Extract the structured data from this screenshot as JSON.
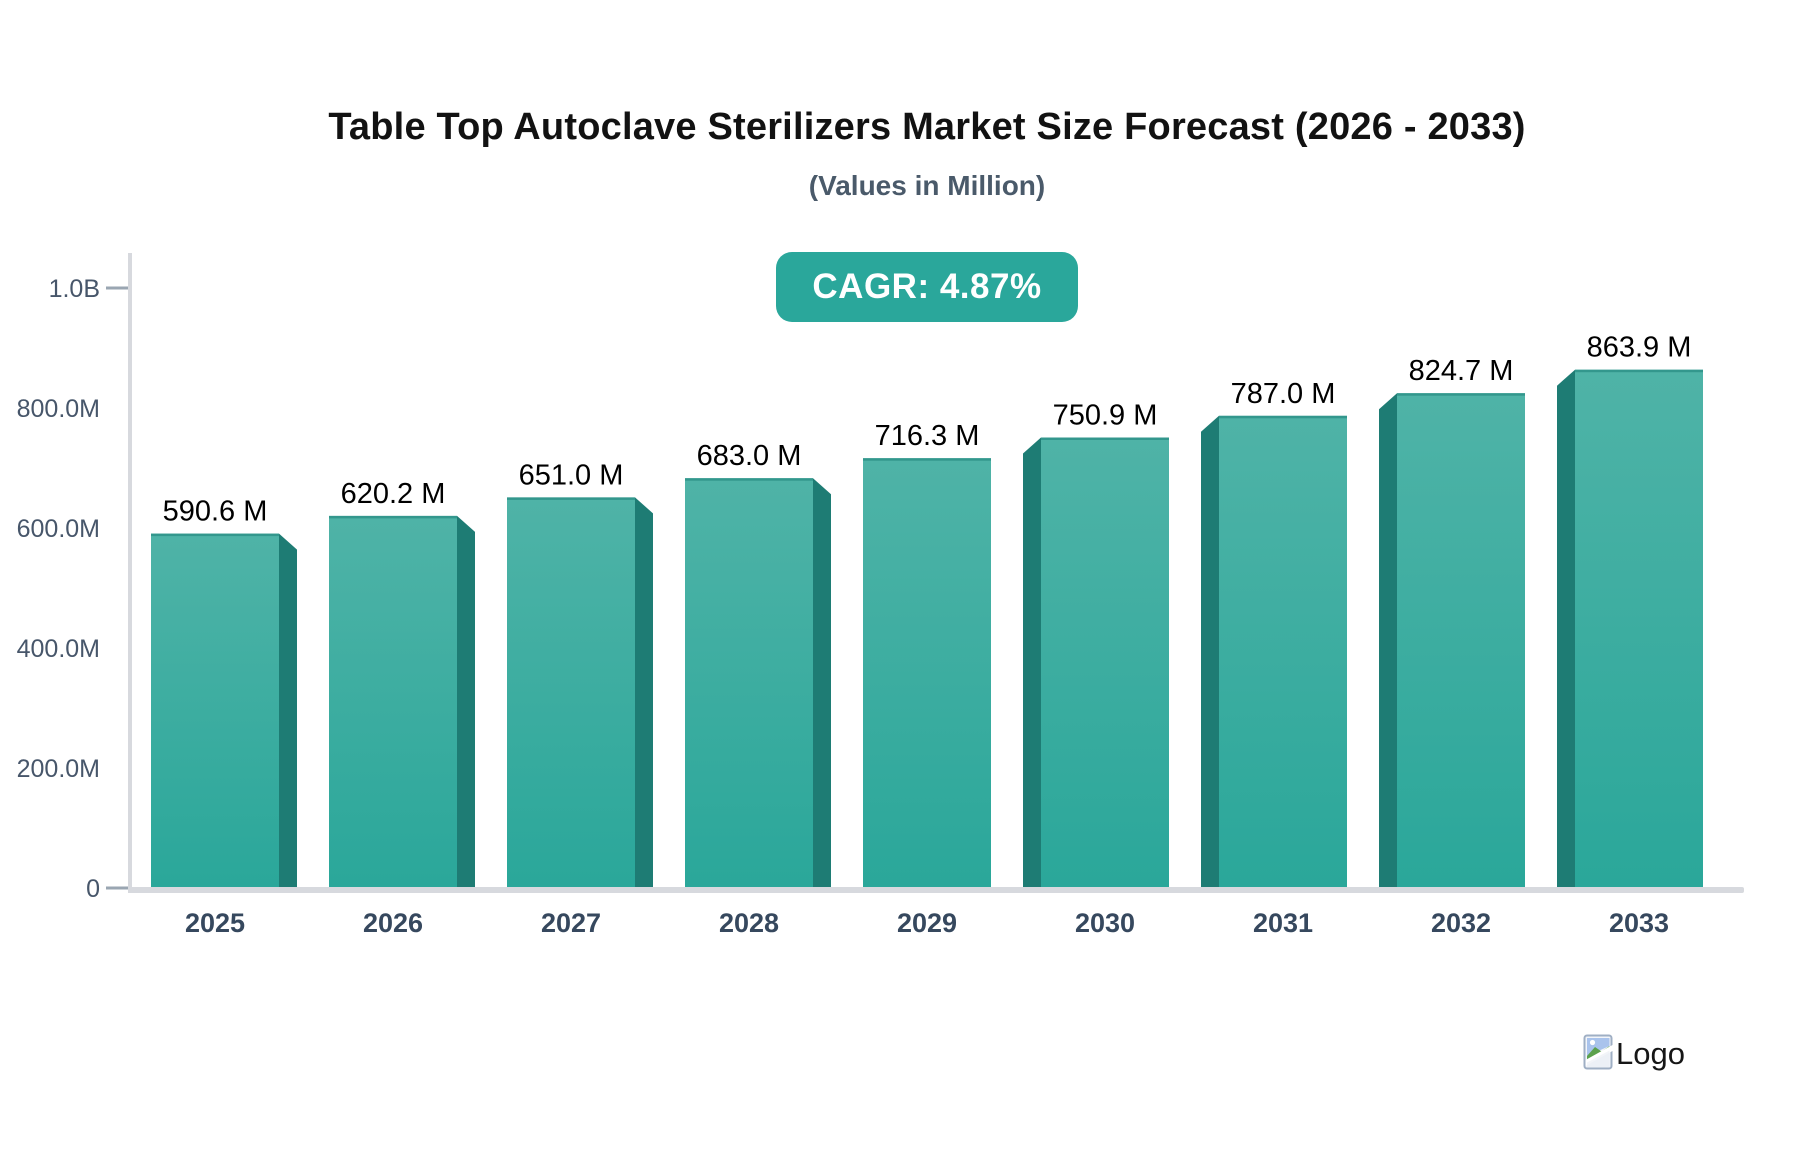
{
  "footer": {
    "logo_alt": "Logo"
  },
  "chart_data": {
    "type": "bar",
    "title": "Table Top Autoclave Sterilizers Market Size Forecast (2026 - 2033)",
    "subtitle": "(Values in Million)",
    "annotation_badge": "CAGR: 4.87%",
    "categories": [
      "2025",
      "2026",
      "2027",
      "2028",
      "2029",
      "2030",
      "2031",
      "2032",
      "2033"
    ],
    "values": [
      590.6,
      620.2,
      651.0,
      683.0,
      716.3,
      750.9,
      787.0,
      824.7,
      863.9
    ],
    "value_labels": [
      "590.6 M",
      "620.2 M",
      "651.0 M",
      "683.0 M",
      "716.3 M",
      "750.9 M",
      "787.0 M",
      "824.7 M",
      "863.9 M"
    ],
    "xlabel": "",
    "ylabel": "",
    "ylim": [
      0,
      1000
    ],
    "ytick_values": [
      0,
      200,
      400,
      600,
      800,
      1000
    ],
    "ytick_labels": [
      "0",
      "200.0M",
      "400.0M",
      "600.0M",
      "800.0M",
      "1.0B"
    ],
    "grid": false,
    "legend": false,
    "style_3d": true,
    "colors": {
      "bar_face_top": "#4fb3a7",
      "bar_face_bottom": "#2aa79a",
      "bar_side": "#1e7c74",
      "bar_top_edge": "#2e9288",
      "badge_bg": "#2aa79b",
      "badge_text": "#ffffff",
      "title_text": "#121212",
      "subtitle_text": "#4a5a6a",
      "value_label": "#000000",
      "year_label": "#36485e",
      "axis_label": "#47566a",
      "axis_line": "#d7d9de",
      "tick_mark": "#9aa6b2"
    }
  }
}
